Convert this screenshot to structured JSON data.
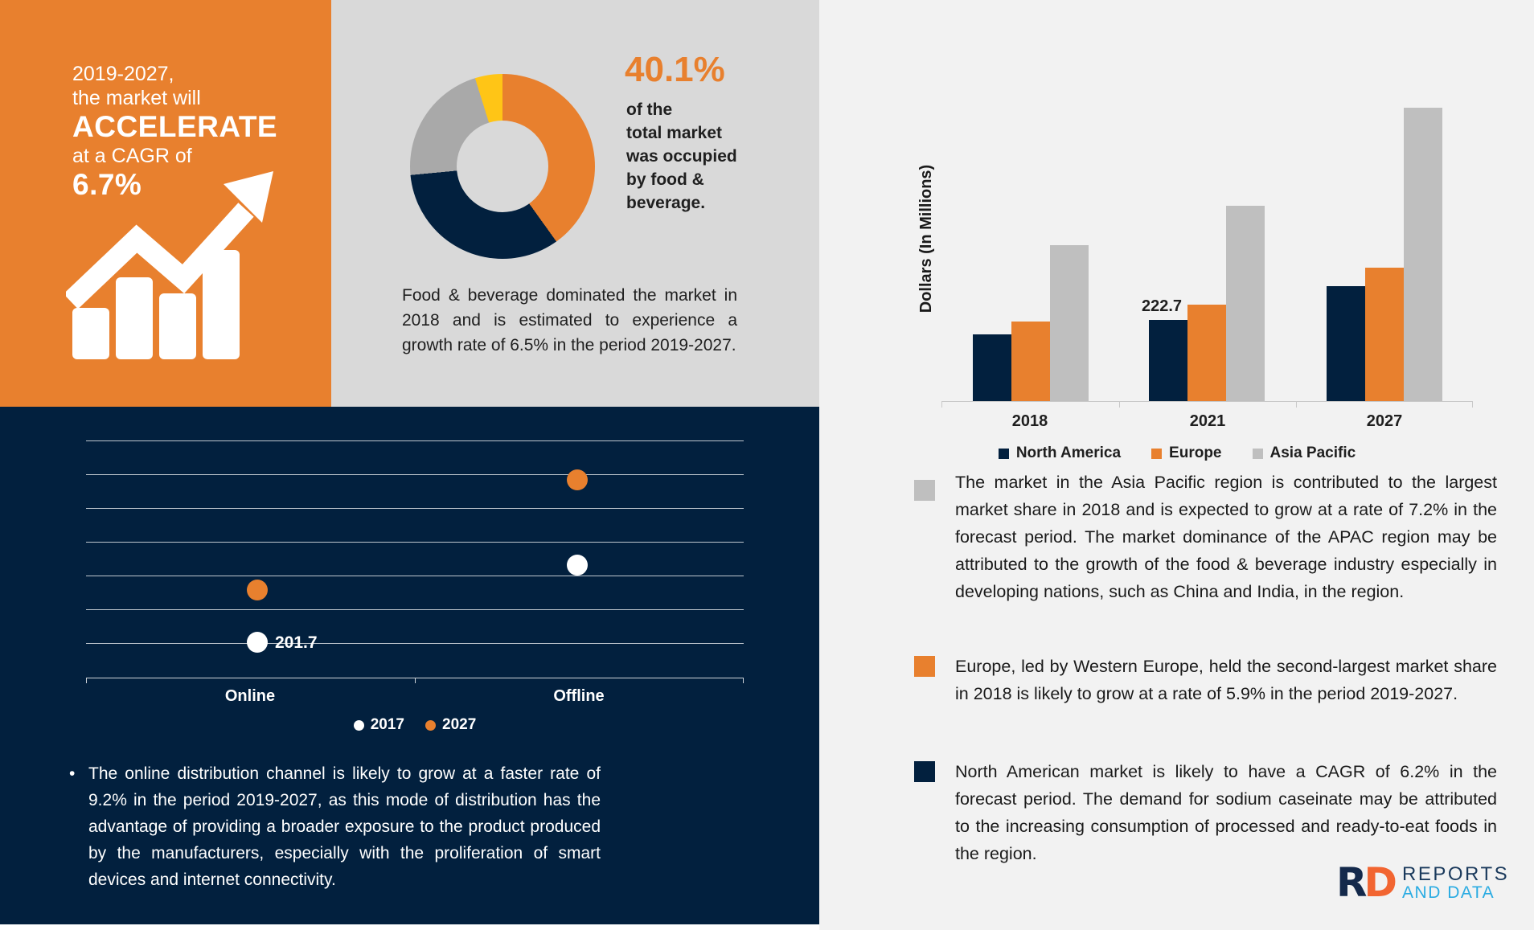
{
  "colors": {
    "orange": "#E8802E",
    "navy": "#02203E",
    "panel_gray": "#D9D9D9",
    "panel_white": "#F2F2F2",
    "bar_gray": "#BFBFBF",
    "donut_gray": "#A9A9A9",
    "yellow": "#FFC516",
    "white": "#FFFFFF",
    "logo_blue": "#29ABE2",
    "logo_navy": "#1B3A5C",
    "logo_orange": "#F26531"
  },
  "accelerate_panel": {
    "line1": "2019-2027,",
    "line2": "the market will",
    "line3": "ACCELERATE",
    "line4": "at a CAGR of",
    "line5": "6.7%",
    "icon": "growth-chart-arrow-icon"
  },
  "donut_panel": {
    "stat_value": "40.1%",
    "stat_lines": [
      "of the",
      "total market",
      "was occupied",
      "by food &",
      "beverage."
    ],
    "paragraph": "Food & beverage dominated the market in 2018 and is estimated to experience a growth rate of 6.5% in the period 2019-2027."
  },
  "distribution_panel": {
    "bullet": "The online distribution channel is likely to grow at a faster rate of 9.2% in the period 2019-2027, as this mode of distribution has the advantage of providing a broader exposure to the product produced by the manufacturers, especially with the proliferation of smart devices and internet connectivity."
  },
  "regional_panel": {
    "notes": [
      {
        "color": "#BFBFBF",
        "text": "The market in the Asia Pacific region is contributed to the largest market share in 2018 and is expected to grow at a rate of 7.2% in the forecast period. The market dominance of the APAC region may be attributed to the growth of the food & beverage industry especially in developing nations, such as China and India, in the region."
      },
      {
        "color": "#E8802E",
        "text": "Europe, led by Western Europe, held the second-largest market share in 2018 is likely to grow at a rate of 5.9% in the period 2019-2027."
      },
      {
        "color": "#02203E",
        "text": "North American market is likely to have a CAGR of 6.2% in the forecast period. The demand for sodium caseinate may be attributed to the increasing consumption of processed and ready-to-eat foods in the region."
      }
    ]
  },
  "logo": {
    "monogram_r": "R",
    "monogram_d": "D",
    "line1": "REPORTS",
    "line2": "AND DATA"
  },
  "chart_data": [
    {
      "type": "bar",
      "title": "",
      "ylabel": "Dollars (In Millions)",
      "xlabel": "",
      "categories": [
        "2018",
        "2021",
        "2027"
      ],
      "series": [
        {
          "name": "North America",
          "color": "#02203E",
          "values": [
            183,
            222.7,
            315
          ]
        },
        {
          "name": "Europe",
          "color": "#E8802E",
          "values": [
            218,
            265,
            366
          ]
        },
        {
          "name": "Asia Pacific",
          "color": "#BFBFBF",
          "values": [
            428,
            536,
            805
          ]
        }
      ],
      "data_labels": [
        {
          "series": "North America",
          "category": "2021",
          "text": "222.7",
          "value": 222.7
        }
      ],
      "ylim": [
        0,
        850
      ],
      "grid": false,
      "legend_position": "bottom"
    },
    {
      "type": "pie",
      "subtype": "donut",
      "labels": [
        "Food & beverage",
        "",
        "",
        ""
      ],
      "values": [
        40.1,
        33.4,
        21.7,
        4.8
      ],
      "colors": [
        "#E8802E",
        "#02203E",
        "#A9A9A9",
        "#FFC516"
      ],
      "start_angle_deg": 0,
      "annotation": "40.1% of the total market was occupied by food & beverage."
    },
    {
      "type": "scatter",
      "subtype": "categorical-dot-plot",
      "categories": [
        "Online",
        "Offline"
      ],
      "series": [
        {
          "name": "2017",
          "color": "#FFFFFF",
          "values": [
            201.7,
            315
          ]
        },
        {
          "name": "2027",
          "color": "#E8802E",
          "values": [
            278,
            442
          ]
        }
      ],
      "data_labels": [
        {
          "series": "2017",
          "category": "Online",
          "text": "201.7",
          "value": 201.7
        }
      ],
      "ylim": [
        150,
        500
      ],
      "grid": true,
      "legend_position": "bottom"
    }
  ]
}
